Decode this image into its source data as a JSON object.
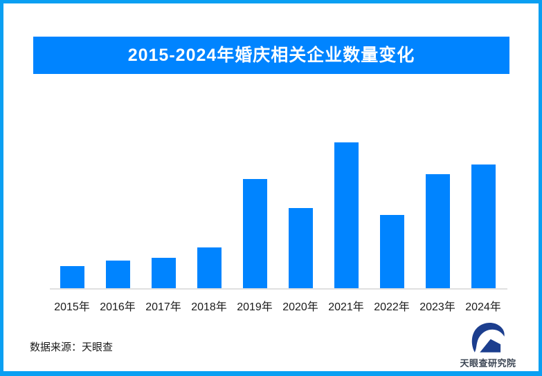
{
  "page": {
    "background": "#ffffff",
    "border_color": "#0a9ff2"
  },
  "title": {
    "text": "2015-2024年婚庆相关企业数量变化",
    "bg_color": "#0084ff",
    "text_color": "#ffffff"
  },
  "chart_data": {
    "type": "bar",
    "title": "2015-2024年婚庆相关企业数量变化",
    "categories": [
      "2015年",
      "2016年",
      "2017年",
      "2018年",
      "2019年",
      "2020年",
      "2021年",
      "2022年",
      "2023年",
      "2024年"
    ],
    "values": [
      15,
      19,
      21,
      28,
      75,
      55,
      100,
      50,
      78,
      85
    ],
    "value_note": "柱体无数值标注，数值为按最高柱=100估读的相对高度",
    "xlabel": "",
    "ylabel": "",
    "ylim": [
      0,
      100
    ],
    "grid": false,
    "legend": false,
    "bar_color": "#0084ff",
    "axis_line_color": "#e0e0e0"
  },
  "footer": {
    "source_label": "数据来源：天眼查"
  },
  "logo": {
    "name": "天眼查研究院",
    "mark_color": "#1c3e8e",
    "text_color": "#3c4654"
  }
}
